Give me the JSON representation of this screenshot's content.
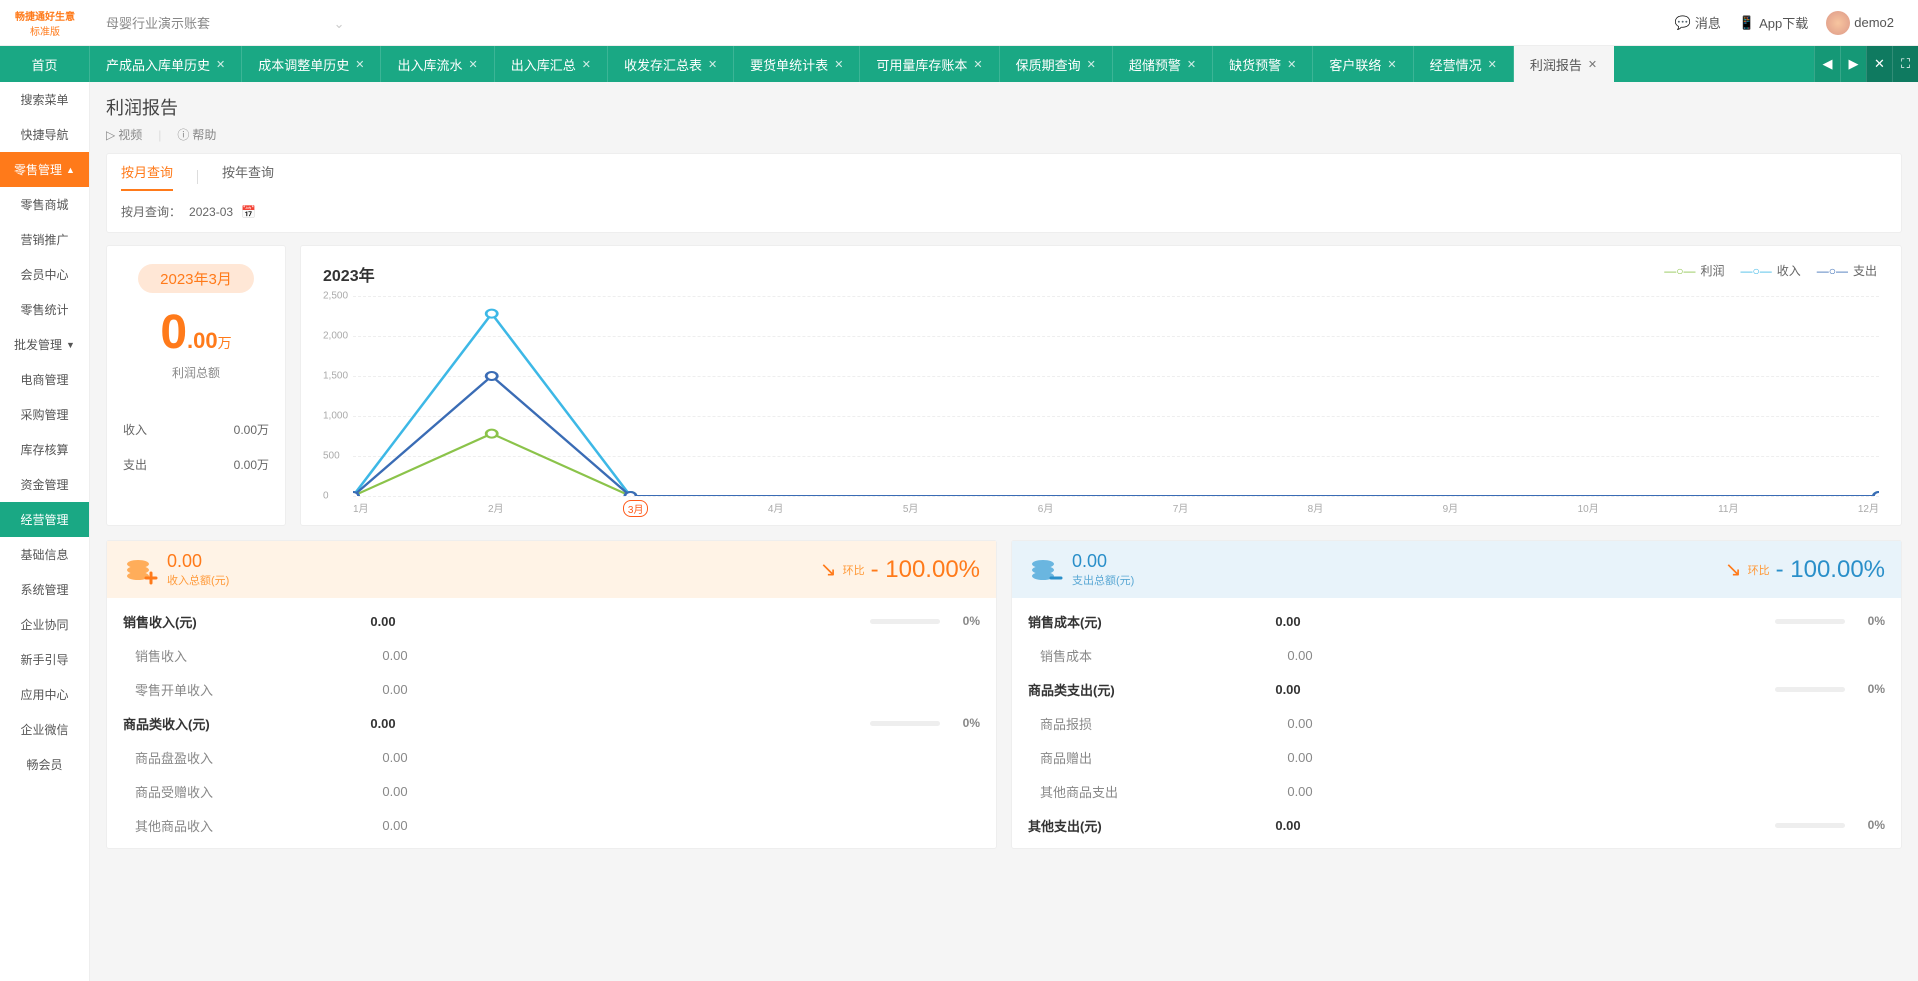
{
  "header": {
    "brand": "畅捷通好生意",
    "edition": "标准版",
    "account": "母婴行业演示账套",
    "messages": "消息",
    "appDownload": "App下载",
    "user": "demo2"
  },
  "tabs": [
    {
      "label": "首页",
      "closable": false
    },
    {
      "label": "产成品入库单历史",
      "closable": true
    },
    {
      "label": "成本调整单历史",
      "closable": true
    },
    {
      "label": "出入库流水",
      "closable": true
    },
    {
      "label": "出入库汇总",
      "closable": true
    },
    {
      "label": "收发存汇总表",
      "closable": true
    },
    {
      "label": "要货单统计表",
      "closable": true
    },
    {
      "label": "可用量库存账本",
      "closable": true
    },
    {
      "label": "保质期查询",
      "closable": true
    },
    {
      "label": "超储预警",
      "closable": true
    },
    {
      "label": "缺货预警",
      "closable": true
    },
    {
      "label": "客户联络",
      "closable": true
    },
    {
      "label": "经营情况",
      "closable": true
    },
    {
      "label": "利润报告",
      "closable": true,
      "active": true
    }
  ],
  "sidebar": [
    {
      "label": "搜索菜单"
    },
    {
      "label": "快捷导航"
    },
    {
      "label": "零售管理",
      "accent": true,
      "caret": "▲"
    },
    {
      "label": "零售商城"
    },
    {
      "label": "营销推广"
    },
    {
      "label": "会员中心"
    },
    {
      "label": "零售统计"
    },
    {
      "label": "批发管理",
      "caret": "▼"
    },
    {
      "label": "电商管理"
    },
    {
      "label": "采购管理"
    },
    {
      "label": "库存核算"
    },
    {
      "label": "资金管理"
    },
    {
      "label": "经营管理",
      "active": true
    },
    {
      "label": "基础信息"
    },
    {
      "label": "系统管理"
    },
    {
      "label": "企业协同"
    },
    {
      "label": "新手引导"
    },
    {
      "label": "应用中心"
    },
    {
      "label": "企业微信"
    },
    {
      "label": "畅会员"
    }
  ],
  "page": {
    "title": "利润报告",
    "video": "视频",
    "help": "帮助",
    "tabMonth": "按月查询",
    "tabYear": "按年查询",
    "queryLabel": "按月查询：",
    "queryValue": "2023-03"
  },
  "summary": {
    "pill": "2023年3月",
    "bigValue": "0",
    "bigDecimal": ".00",
    "bigUnit": "万",
    "subLabel": "利润总额",
    "incomeLabel": "收入",
    "incomeValue": "0.00万",
    "expenseLabel": "支出",
    "expenseValue": "0.00万"
  },
  "chart": {
    "title": "2023年",
    "legend": [
      {
        "name": "利润",
        "color": "#8bc34a"
      },
      {
        "name": "收入",
        "color": "#3db8e6"
      },
      {
        "name": "支出",
        "color": "#3a6cb5"
      }
    ],
    "ymax": 2500,
    "yticks": [
      2500,
      2000,
      1500,
      1000,
      500,
      0
    ],
    "months": [
      "1月",
      "2月",
      "3月",
      "4月",
      "5月",
      "6月",
      "7月",
      "8月",
      "9月",
      "10月",
      "11月",
      "12月"
    ],
    "activeMonthIdx": 2,
    "series": [
      {
        "color": "#8bc34a",
        "values": [
          0,
          780,
          0,
          0,
          0,
          0,
          0,
          0,
          0,
          0,
          0,
          0
        ]
      },
      {
        "color": "#3db8e6",
        "values": [
          0,
          2280,
          0,
          0,
          0,
          0,
          0,
          0,
          0,
          0,
          0,
          0
        ]
      },
      {
        "color": "#3a6cb5",
        "values": [
          0,
          1500,
          0,
          0,
          0,
          0,
          0,
          0,
          0,
          0,
          0,
          0
        ]
      }
    ],
    "gridColor": "#eeeeee",
    "background": "#ffffff",
    "titleFontSize": 16,
    "markerRadius": 4,
    "lineWidth": 2
  },
  "incomePanel": {
    "headerValue": "0.00",
    "headerLabel": "收入总额(元)",
    "hbLabel": "环比",
    "pct": "- 100.00%",
    "rows": [
      {
        "label": "销售收入(元)",
        "val": "0.00",
        "pct": "0%",
        "bold": true,
        "bar": true
      },
      {
        "label": "销售收入",
        "val": "0.00",
        "sub": true
      },
      {
        "label": "零售开单收入",
        "val": "0.00",
        "sub": true
      },
      {
        "label": "商品类收入(元)",
        "val": "0.00",
        "pct": "0%",
        "bold": true,
        "bar": true
      },
      {
        "label": "商品盘盈收入",
        "val": "0.00",
        "sub": true
      },
      {
        "label": "商品受赠收入",
        "val": "0.00",
        "sub": true
      },
      {
        "label": "其他商品收入",
        "val": "0.00",
        "sub": true
      }
    ]
  },
  "expensePanel": {
    "headerValue": "0.00",
    "headerLabel": "支出总额(元)",
    "hbLabel": "环比",
    "pct": "- 100.00%",
    "rows": [
      {
        "label": "销售成本(元)",
        "val": "0.00",
        "pct": "0%",
        "bold": true,
        "bar": true
      },
      {
        "label": "销售成本",
        "val": "0.00",
        "sub": true
      },
      {
        "label": "商品类支出(元)",
        "val": "0.00",
        "pct": "0%",
        "bold": true,
        "bar": true
      },
      {
        "label": "商品报损",
        "val": "0.00",
        "sub": true
      },
      {
        "label": "商品赠出",
        "val": "0.00",
        "sub": true
      },
      {
        "label": "其他商品支出",
        "val": "0.00",
        "sub": true
      },
      {
        "label": "其他支出(元)",
        "val": "0.00",
        "pct": "0%",
        "bold": true,
        "bar": true
      }
    ]
  }
}
